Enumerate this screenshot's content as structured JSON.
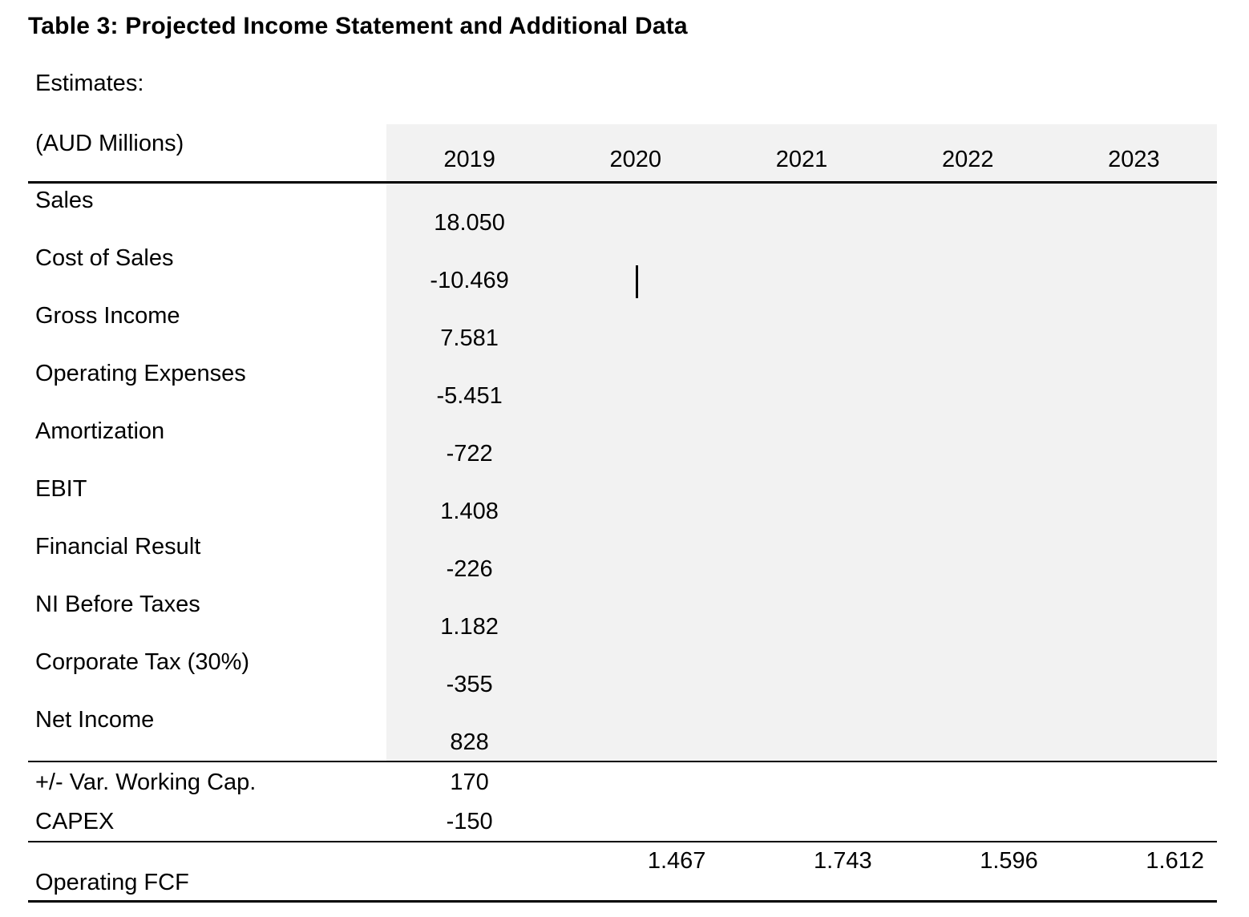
{
  "title": "Table 3: Projected Income Statement and Additional Data",
  "estimates_label": "Estimates:",
  "unit_label": "(AUD Millions)",
  "colors": {
    "shade": "#f2f2f2",
    "line": "#000000",
    "text": "#000000",
    "background": "#ffffff"
  },
  "table": {
    "columns": [
      "2019",
      "2020",
      "2021",
      "2022",
      "2023"
    ],
    "rows": [
      {
        "label": "Sales",
        "values": [
          "18.050",
          "",
          "",
          "",
          ""
        ]
      },
      {
        "label": "Cost of Sales",
        "values": [
          "-10.469",
          "",
          "",
          "",
          ""
        ]
      },
      {
        "label": "Gross Income",
        "values": [
          "7.581",
          "",
          "",
          "",
          ""
        ]
      },
      {
        "label": "Operating Expenses",
        "values": [
          "-5.451",
          "",
          "",
          "",
          ""
        ]
      },
      {
        "label": "Amortization",
        "values": [
          "-722",
          "",
          "",
          "",
          ""
        ]
      },
      {
        "label": "EBIT",
        "values": [
          "1.408",
          "",
          "",
          "",
          ""
        ]
      },
      {
        "label": "Financial Result",
        "values": [
          "-226",
          "",
          "",
          "",
          ""
        ]
      },
      {
        "label": "NI Before Taxes",
        "values": [
          "1.182",
          "",
          "",
          "",
          ""
        ]
      },
      {
        "label": "Corporate Tax (30%)",
        "values": [
          "-355",
          "",
          "",
          "",
          ""
        ]
      },
      {
        "label": "Net Income",
        "values": [
          "828",
          "",
          "",
          "",
          ""
        ]
      },
      {
        "label": "+/- Var. Working Cap.",
        "values": [
          "170",
          "",
          "",
          "",
          ""
        ]
      },
      {
        "label": "CAPEX",
        "values": [
          "-150",
          "",
          "",
          "",
          ""
        ]
      },
      {
        "label": "Operating FCF",
        "values": [
          "",
          "1.467",
          "1.743",
          "1.596",
          "1.612"
        ]
      }
    ]
  }
}
